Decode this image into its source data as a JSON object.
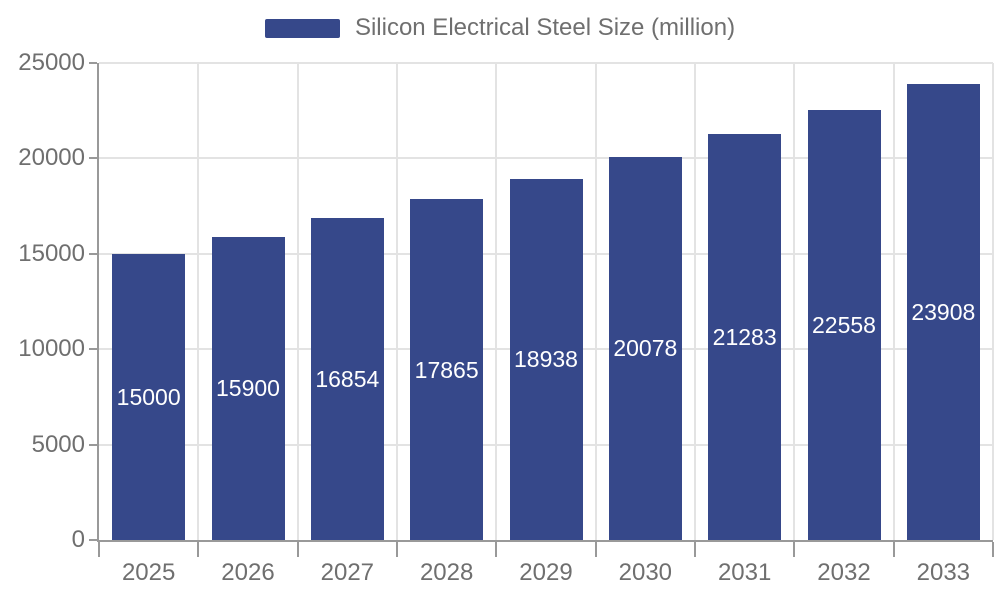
{
  "legend": {
    "position": "top",
    "items": [
      {
        "label": "Silicon Electrical Steel Size (million)"
      }
    ]
  },
  "chart_data": {
    "type": "bar",
    "title": "",
    "xlabel": "",
    "ylabel": "",
    "categories": [
      "2025",
      "2026",
      "2027",
      "2028",
      "2029",
      "2030",
      "2031",
      "2032",
      "2033"
    ],
    "series": [
      {
        "name": "Silicon Electrical Steel Size (million)",
        "values": [
          15000,
          15900,
          16854,
          17865,
          18938,
          20078,
          21283,
          22558,
          23908
        ]
      }
    ],
    "bar_value_labels": [
      "15000",
      "15900",
      "16854",
      "17865",
      "18938",
      "20078",
      "21283",
      "22558",
      "23908"
    ],
    "ylim": [
      0,
      25000
    ],
    "yticks": [
      0,
      5000,
      10000,
      15000,
      20000,
      25000
    ],
    "ytick_labels": [
      "0",
      "5000",
      "10000",
      "15000",
      "20000",
      "25000"
    ],
    "grid": true,
    "legend_position": "top"
  },
  "colors": {
    "bar": "#36488A",
    "bar_label": "#ffffff",
    "grid_line": "#e3e3e3",
    "axis_line": "#999999",
    "tick_label": "#6f6f6f",
    "legend_text": "#6f6f6f",
    "background": "#ffffff"
  }
}
